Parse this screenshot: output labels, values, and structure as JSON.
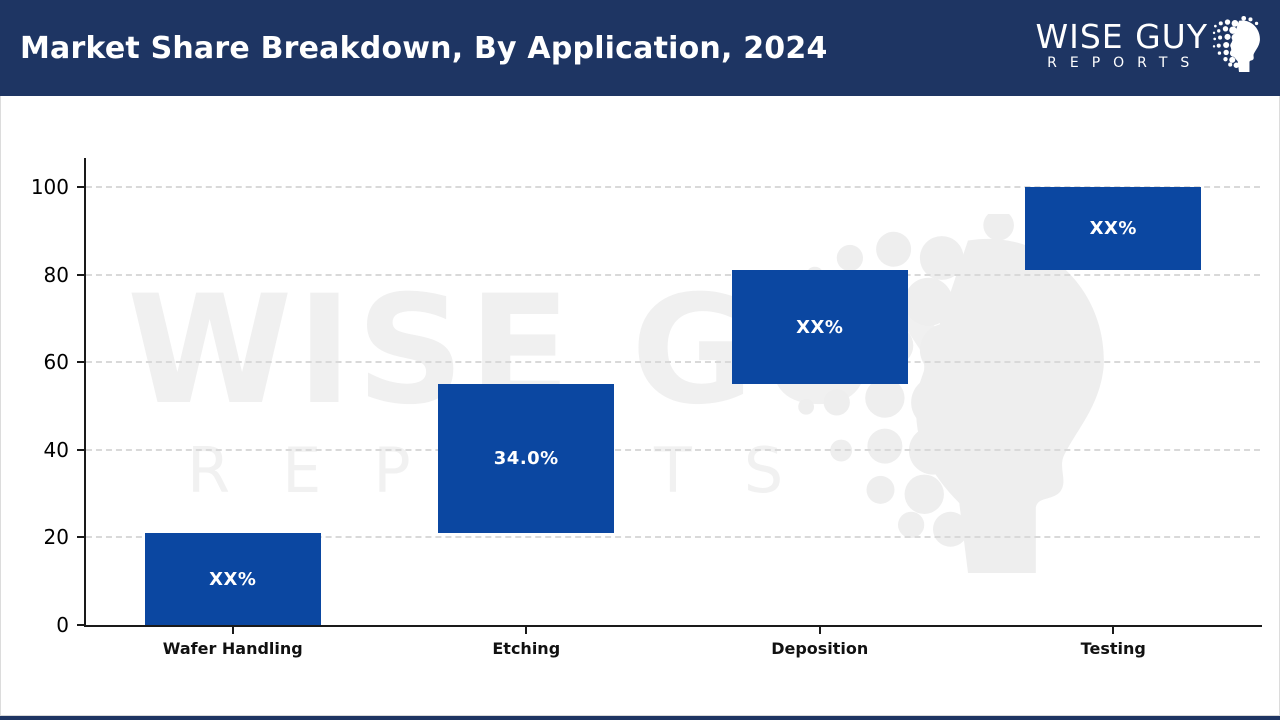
{
  "header": {
    "title": "Market Share Breakdown, By Application, 2024",
    "bg_color": "#1e3563",
    "logo": {
      "wordmark": "WISE GUY",
      "subtext": "REPORTS"
    }
  },
  "watermark": {
    "wordmark": "WISE GUY",
    "subtext": "REPORTS"
  },
  "chart_data": {
    "type": "bar",
    "subtype": "waterfall",
    "title": "Market Share Breakdown, By Application, 2024",
    "categories": [
      "Wafer Handling",
      "Etching",
      "Deposition",
      "Testing"
    ],
    "segments": [
      {
        "category": "Wafer Handling",
        "start": 0,
        "end": 21,
        "label": "XX%"
      },
      {
        "category": "Etching",
        "start": 21,
        "end": 55,
        "label": "34.0%"
      },
      {
        "category": "Deposition",
        "start": 55,
        "end": 81,
        "label": "XX%"
      },
      {
        "category": "Testing",
        "start": 81,
        "end": 100,
        "label": "XX%"
      }
    ],
    "xlabel": "",
    "ylabel": "",
    "yticks": [
      0,
      20,
      40,
      60,
      80,
      100
    ],
    "ylim": [
      0,
      106
    ],
    "grid": true,
    "grid_style": "dashed",
    "legend": false,
    "bar_color": "#0b47a1",
    "bar_label_color": "#ffffff",
    "grid_color": "#d9d9d9",
    "axis_color": "#1a1a1a"
  },
  "footer": {
    "bg_color": "#1e3563"
  }
}
